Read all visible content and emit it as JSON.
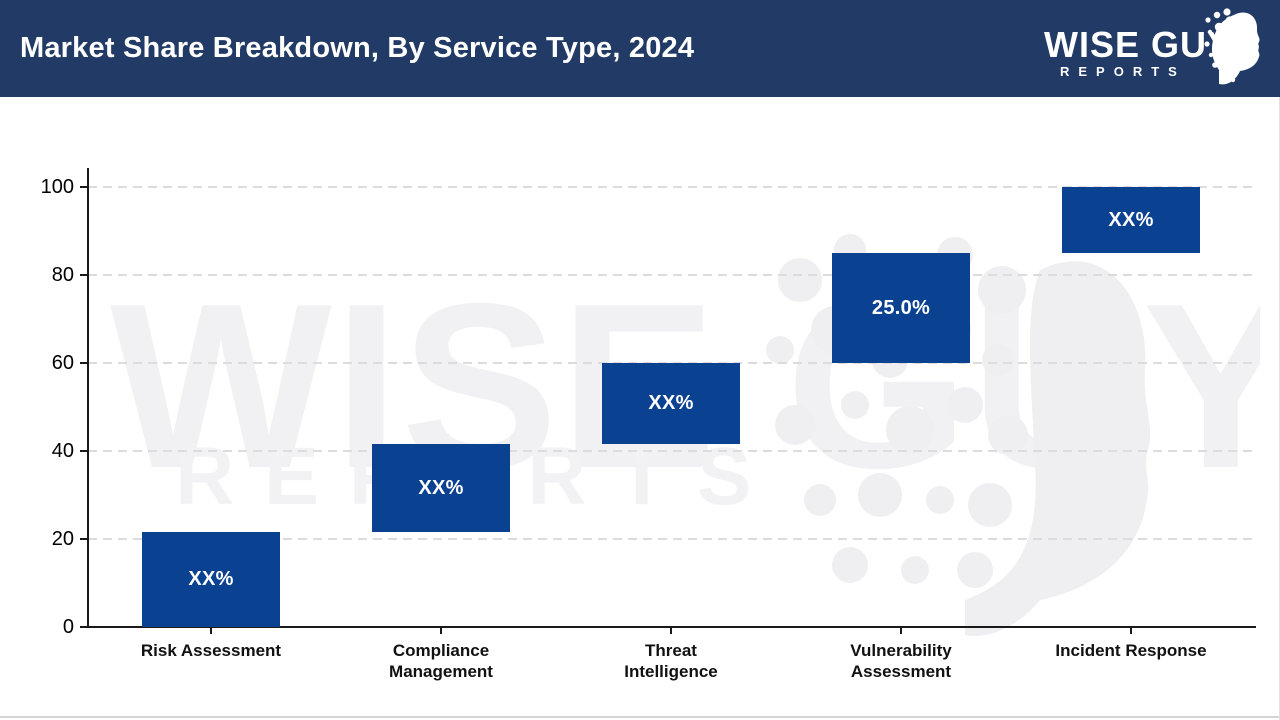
{
  "header": {
    "title": "Market Share Breakdown, By Service Type, 2024",
    "bg_color": "#213a66",
    "logo": {
      "wordmark": "WISE GUY",
      "subtext": "REPORTS"
    }
  },
  "watermark": {
    "line1": "WISE GUY",
    "line2": "REPORTS"
  },
  "chart_data": {
    "type": "bar",
    "subtype": "floating-waterfall",
    "title": "Market Share Breakdown, By Service Type, 2024",
    "categories": [
      "Risk Assessment",
      "Compliance Management",
      "Threat Intelligence",
      "Vulnerability Assessment",
      "Incident Response"
    ],
    "category_lines": [
      [
        "Risk Assessment"
      ],
      [
        "Compliance",
        "Management"
      ],
      [
        "Threat",
        "Intelligence"
      ],
      [
        "Vulnerability",
        "Assessment"
      ],
      [
        "Incident Response"
      ]
    ],
    "series": [
      {
        "name": "Market Share (%)",
        "ranges": [
          [
            0,
            21.5
          ],
          [
            21.5,
            41.5
          ],
          [
            41.5,
            60
          ],
          [
            60,
            85
          ],
          [
            85,
            100
          ]
        ],
        "segment_sizes": [
          21.5,
          20,
          18.5,
          25,
          15
        ],
        "labels": [
          "XX%",
          "XX%",
          "XX%",
          "25.0%",
          "XX%"
        ]
      }
    ],
    "xlabel": "",
    "ylabel": "",
    "ylim": [
      0,
      100
    ],
    "yticks": [
      0,
      20,
      40,
      60,
      80,
      100
    ],
    "grid": "horizontal-dashed",
    "legend": "none",
    "bar_color": "#0b4191",
    "label_color": "#ffffff"
  }
}
